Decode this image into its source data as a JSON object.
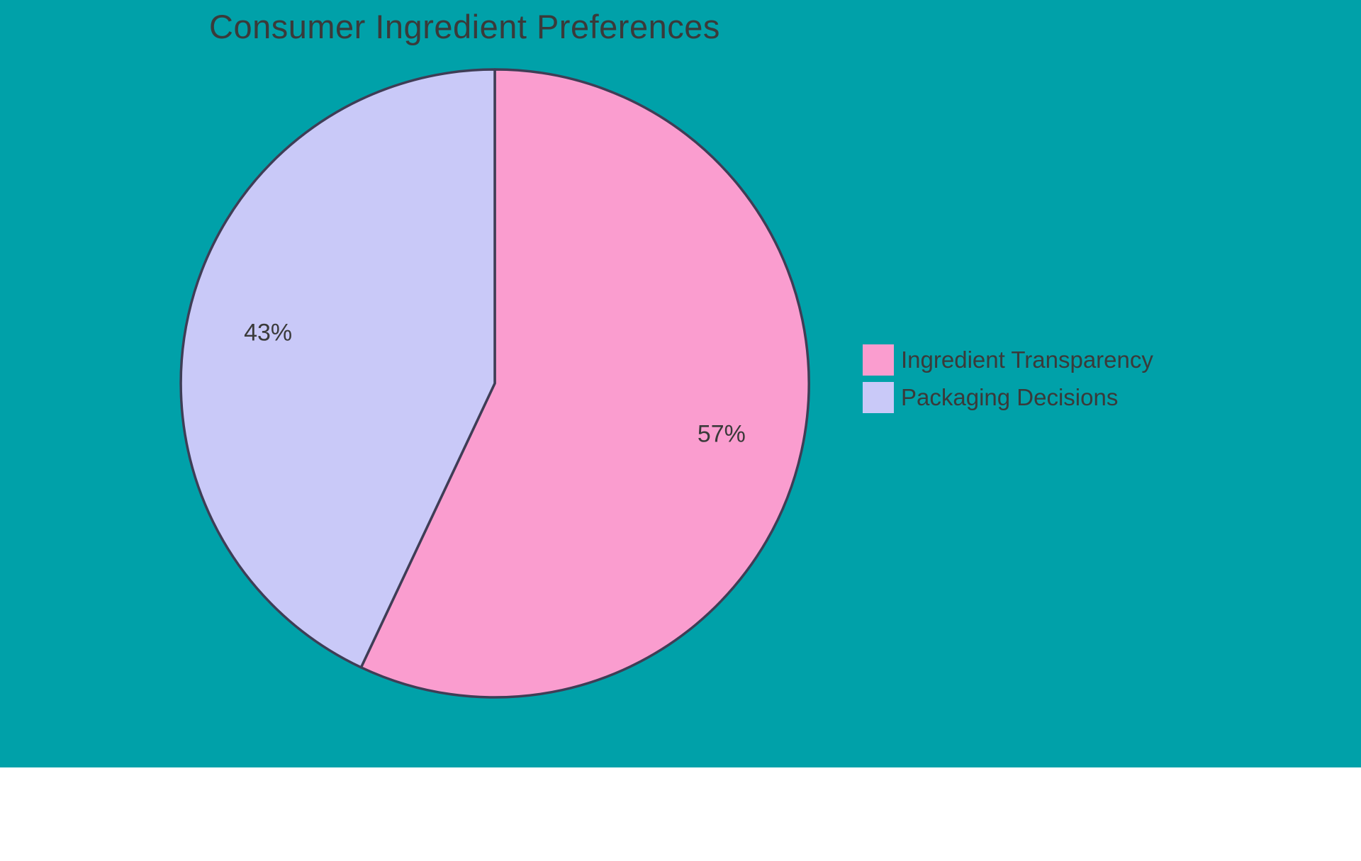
{
  "page": {
    "background_color": "#00A1A9",
    "footer_background": "#FFFFFF",
    "text_color": "#3A3A3A"
  },
  "chart_data": {
    "type": "pie",
    "title": "Consumer Ingredient Preferences",
    "labels": [
      "Ingredient Transparency",
      "Packaging Decisions"
    ],
    "values": [
      57,
      43
    ],
    "value_labels": [
      "57%",
      "43%"
    ],
    "colors": [
      "#FA9DCF",
      "#C9C9F8"
    ],
    "slice_border_color": "#3F3D56",
    "label_text_color": "#3A3A3A",
    "legend_position": "right",
    "start_angle": "top",
    "direction": "clockwise"
  }
}
